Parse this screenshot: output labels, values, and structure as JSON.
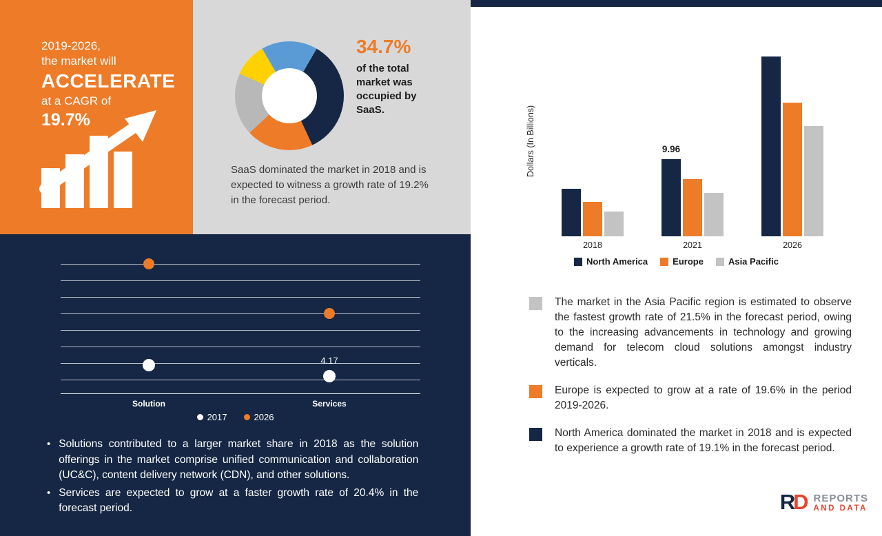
{
  "colors": {
    "orange": "#ee7b28",
    "navy": "#152744",
    "panel_gray": "#d8d8d8",
    "chart_gray": "#c3c3c3",
    "donut_blue": "#5b9bd5",
    "donut_yellow": "#ffd100",
    "logo_red": "#e8432d"
  },
  "promo": {
    "period": "2019-2026,",
    "intro": "the market will",
    "headline": "ACCELERATE",
    "cagr_label": "at a CAGR of",
    "cagr_value": "19.7%"
  },
  "saas": {
    "share_value": "34.7%",
    "share_caption": "of the total market was occupied by SaaS.",
    "note": "SaaS dominated the market in 2018 and is expected to witness a growth rate of 19.2% in the forecast period."
  },
  "segment_notes": [
    "Solutions contributed to a larger market share in 2018 as the solution offerings in the market comprise unified communication and collaboration (UC&C), content delivery network (CDN), and other solutions.",
    "Services are expected to grow at a faster growth rate of 20.4% in the forecast period."
  ],
  "regional_notes": [
    {
      "swatch": "gray",
      "text": "The market in the Asia Pacific region is estimated to observe the fastest growth rate of 21.5% in the forecast period, owing to the increasing advancements in technology and growing demand for telecom cloud solutions amongst industry verticals."
    },
    {
      "swatch": "orange",
      "text": "Europe is expected to grow at a rate of 19.6% in the period 2019-2026."
    },
    {
      "swatch": "navy",
      "text": "North America dominated the market in 2018 and is expected to experience a growth rate of 19.1% in the forecast period."
    }
  ],
  "logo": {
    "mark_r": "R",
    "mark_d": "D",
    "name_top": "REPORTS",
    "name_bottom": "AND DATA"
  },
  "chart_data": [
    {
      "type": "pie",
      "style": "donut",
      "start_angle_deg": -30,
      "segments": [
        {
          "label": "",
          "value": 16.7,
          "color": "#5b9bd5"
        },
        {
          "label": "SaaS",
          "value": 34.7,
          "color": "#152744"
        },
        {
          "label": "",
          "value": 20.0,
          "color": "#ee7b28"
        },
        {
          "label": "",
          "value": 18.6,
          "color": "#b8b8b8"
        },
        {
          "label": "",
          "value": 10.0,
          "color": "#ffd100"
        }
      ],
      "annotation": "34.7% of the total market was occupied by SaaS."
    },
    {
      "type": "scatter",
      "categories": [
        "Solution",
        "Services"
      ],
      "series": [
        {
          "name": "2017",
          "color": "#ffffff",
          "values": [
            4.6,
            4.17
          ],
          "value_labels": [
            "",
            "4.17"
          ],
          "y_frac": [
            0.875,
            0.97
          ]
        },
        {
          "name": "2026",
          "color": "#ee7b28",
          "values": [
            11.9,
            8.3
          ],
          "value_labels": [
            "",
            ""
          ],
          "y_frac": [
            0.0,
            0.43
          ]
        }
      ],
      "gridlines": 8,
      "legend_position": "bottom"
    },
    {
      "type": "bar",
      "categories": [
        "2018",
        "2021",
        "2026"
      ],
      "series": [
        {
          "name": "North America",
          "color": "#152744",
          "values": [
            6.1,
            9.96,
            23.2
          ],
          "value_labels": [
            "",
            "9.96",
            ""
          ]
        },
        {
          "name": "Europe",
          "color": "#ee7b28",
          "values": [
            4.4,
            7.4,
            17.2
          ],
          "value_labels": [
            "",
            "",
            ""
          ]
        },
        {
          "name": "Asia Pacific",
          "color": "#c3c3c3",
          "values": [
            3.2,
            5.6,
            14.2
          ],
          "value_labels": [
            "",
            "",
            ""
          ]
        }
      ],
      "ylabel": "Dollars (In Billions)",
      "ylim": [
        0,
        24
      ],
      "legend_position": "bottom"
    }
  ]
}
